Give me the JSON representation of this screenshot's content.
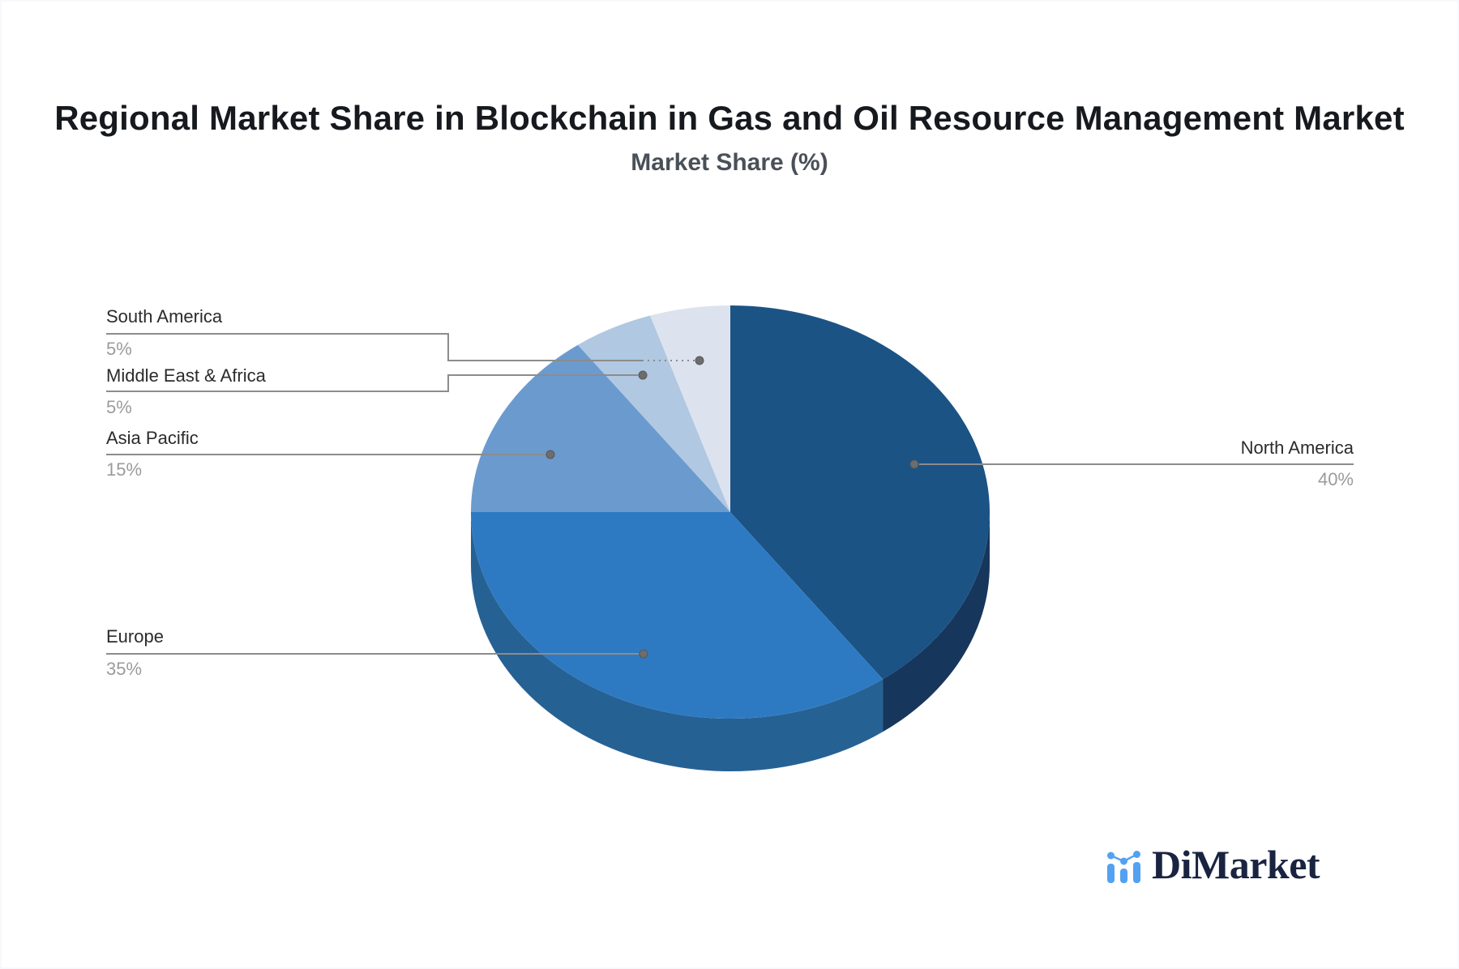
{
  "chart_data": {
    "type": "pie",
    "title": "Regional Market Share in Blockchain in Gas and Oil Resource Management Market",
    "subtitle": "Market Share (%)",
    "unit": "%",
    "legend": "none",
    "label_style": "callout-lines-with-dots",
    "start_angle_deg": 0,
    "clockwise": true,
    "effect": "3d-depth",
    "slices": [
      {
        "label": "North America",
        "value": 40,
        "display": "40%",
        "color": "#1B5385",
        "side_color": "#17365C"
      },
      {
        "label": "Europe",
        "value": 35,
        "display": "35%",
        "color": "#2E7AC2",
        "side_color": "#266194"
      },
      {
        "label": "Asia Pacific",
        "value": 15,
        "display": "15%",
        "color": "#6B9BCE",
        "side_color": "#5581AD"
      },
      {
        "label": "Middle East & Africa",
        "value": 5,
        "display": "5%",
        "color": "#B0C8E1",
        "side_color": "#93A9C2"
      },
      {
        "label": "South America",
        "value": 5,
        "display": "5%",
        "color": "#DCE3EE",
        "side_color": "#B9C2D1"
      }
    ]
  },
  "branding": {
    "logo_text": "DiMarket",
    "logo_icon": "bar-chart-with-trendline-icon",
    "logo_icon_color": "#54A1F2",
    "logo_text_color": "#1A2440"
  },
  "colors": {
    "background": "#FFFFFF",
    "title_text": "#16191D",
    "subtitle_text": "#4A5058",
    "label_text": "#2B2B2B",
    "value_text": "#9B9B9B",
    "callout_line": "#8C8C8C",
    "callout_dot": "#6D6D6D"
  }
}
